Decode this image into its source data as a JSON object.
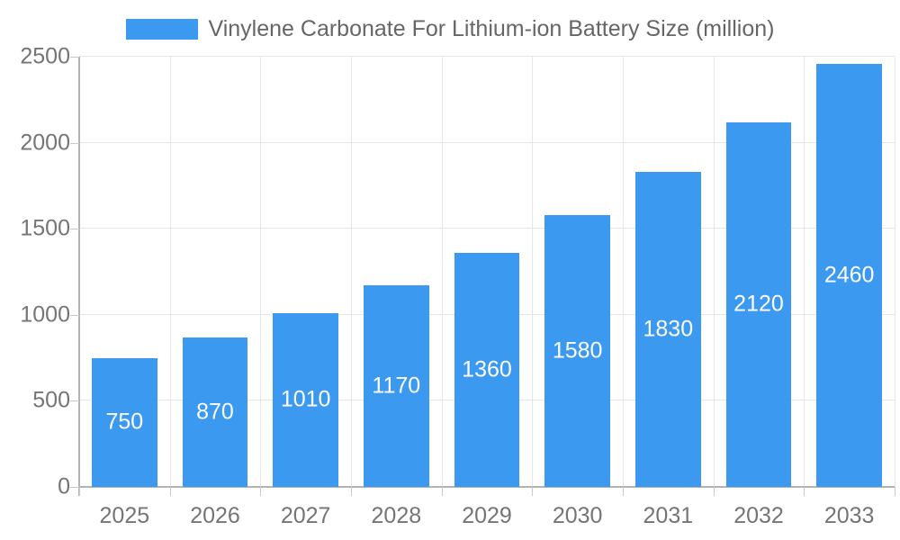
{
  "legend": {
    "label": "Vinylene Carbonate For Lithium-ion Battery Size (million)",
    "swatch_color": "#3b99ef"
  },
  "chart_data": {
    "type": "bar",
    "title": "Vinylene Carbonate For Lithium-ion Battery Size (million)",
    "categories": [
      "2025",
      "2026",
      "2027",
      "2028",
      "2029",
      "2030",
      "2031",
      "2032",
      "2033"
    ],
    "values": [
      750,
      870,
      1010,
      1170,
      1360,
      1580,
      1830,
      2120,
      2460
    ],
    "series": [
      {
        "name": "Vinylene Carbonate For Lithium-ion Battery Size (million)",
        "values": [
          750,
          870,
          1010,
          1170,
          1360,
          1580,
          1830,
          2120,
          2460
        ]
      }
    ],
    "xlabel": "",
    "ylabel": "",
    "ylim": [
      0,
      2500
    ],
    "yticks": [
      0,
      500,
      1000,
      1500,
      2000,
      2500
    ],
    "grid": true,
    "legend_position": "top",
    "value_labels_shown": true,
    "colors": {
      "bar": "#3b99ef",
      "gridline": "#e6e6e6",
      "axis_line": "#b3b3b3",
      "tick": "#c9c9c9",
      "axis_text": "#757575",
      "legend_text": "#666666",
      "value_label_text": "#ffffff",
      "background": "#ffffff"
    }
  }
}
